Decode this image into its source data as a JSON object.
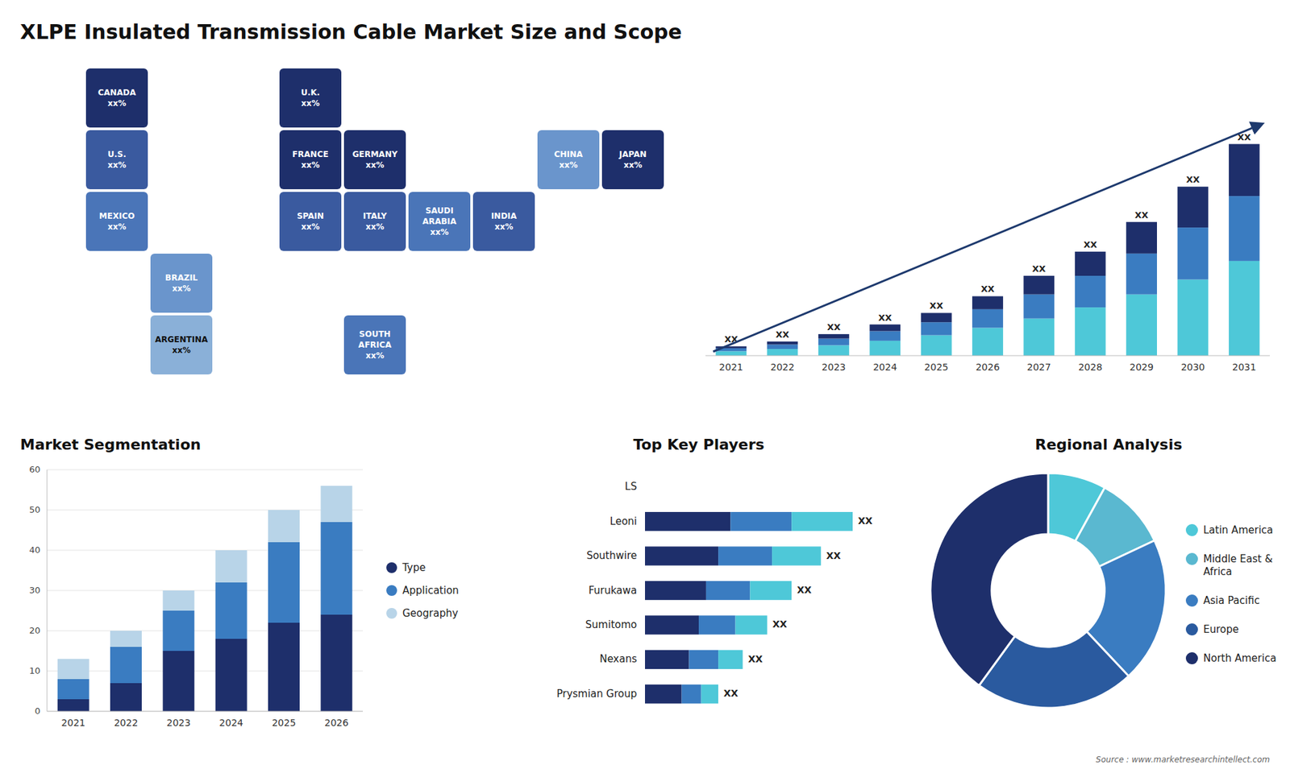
{
  "title": "XLPE Insulated Transmission Cable Market Size and Scope",
  "annotations": [
    "Source : www.marketresearchintellect.com"
  ],
  "chart_data": [
    {
      "type": "map",
      "categories": [
        "CANADA",
        "U.S.",
        "MEXICO",
        "BRAZIL",
        "ARGENTINA",
        "U.K.",
        "FRANCE",
        "SPAIN",
        "GERMANY",
        "ITALY",
        "SAUDI\nARABIA",
        "SOUTH\nAFRICA",
        "CHINA",
        "INDIA",
        "JAPAN"
      ],
      "annotations": [
        "xx%",
        "xx%",
        "xx%",
        "xx%",
        "xx%",
        "xx%",
        "xx%",
        "xx%",
        "xx%",
        "xx%",
        "xx%",
        "xx%",
        "xx%",
        "xx%",
        "xx%"
      ],
      "colors": [
        "#1e2f6b",
        "#3a5a9f",
        "#4a75b8",
        "#6a95cc",
        "#8ab0d8",
        "#1e2f6b",
        "#1e2f6b",
        "#3a5a9f",
        "#1e2f6b",
        "#3a5a9f",
        "#4a75b8",
        "#4a75b8",
        "#6a95cc",
        "#3a5a9f",
        "#1e2f6b"
      ]
    },
    {
      "type": "bar",
      "stacked": true,
      "categories": [
        "2021",
        "2022",
        "2023",
        "2024",
        "2025",
        "2026",
        "2027",
        "2028",
        "2029",
        "2030",
        "2031"
      ],
      "series": [
        {
          "color": "#4ec8d8",
          "values": [
            1.2,
            1.8,
            2.8,
            4.0,
            5.5,
            7.5,
            10.0,
            13.0,
            16.5,
            20.5,
            25.5
          ]
        },
        {
          "color": "#3a7cc1",
          "values": [
            0.8,
            1.2,
            1.8,
            2.6,
            3.5,
            5.0,
            6.5,
            8.5,
            11.0,
            14.0,
            17.5
          ]
        },
        {
          "color": "#1e2f6b",
          "values": [
            0.5,
            0.8,
            1.2,
            1.8,
            2.5,
            3.5,
            5.0,
            6.5,
            8.5,
            11.0,
            14.0
          ],
          "value_labels": [
            "XX",
            "XX",
            "XX",
            "XX",
            "XX",
            "XX",
            "XX",
            "XX",
            "XX",
            "XX",
            "XX"
          ]
        }
      ],
      "ylim": [
        0,
        74.1
      ],
      "tick_labels": "x"
    },
    {
      "type": "bar",
      "stacked": true,
      "title": "Market Segmentation",
      "categories": [
        "2021",
        "2022",
        "2023",
        "2024",
        "2025",
        "2026"
      ],
      "series": [
        {
          "name": "Type",
          "color": "#1e2f6b",
          "values": [
            3,
            7,
            15,
            18,
            22,
            24
          ]
        },
        {
          "name": "Application",
          "color": "#3a7cc1",
          "values": [
            5,
            9,
            10,
            14,
            20,
            23
          ]
        },
        {
          "name": "Geography",
          "color": "#b8d4e8",
          "values": [
            5,
            4,
            5,
            8,
            8,
            9
          ]
        }
      ],
      "ylim": [
        0,
        60
      ],
      "yticks": [
        0,
        10,
        20,
        30,
        40,
        50,
        60
      ],
      "grid": true,
      "legend": "right"
    },
    {
      "type": "bar",
      "orientation": "horizontal",
      "stacked": true,
      "title": "Top Key Players",
      "categories": [
        "LS",
        "Leoni",
        "Southwire",
        "Furukawa",
        "Sumitomo",
        "Nexans",
        "Prysmian Group"
      ],
      "series": [
        {
          "color": "#1e2f6b",
          "values": [
            null,
            3.5,
            3.0,
            2.5,
            2.2,
            1.8,
            1.5
          ]
        },
        {
          "color": "#3a7cc1",
          "values": [
            null,
            2.5,
            2.2,
            1.8,
            1.5,
            1.2,
            0.8
          ]
        },
        {
          "color": "#4ec8d8",
          "values": [
            null,
            2.5,
            2.0,
            1.7,
            1.3,
            1.0,
            0.7
          ],
          "value_labels": [
            null,
            "XX",
            "XX",
            "XX",
            "XX",
            "XX",
            "XX"
          ]
        }
      ],
      "xlim": [
        0,
        11
      ],
      "tick_labels": "y"
    },
    {
      "type": "pie",
      "title": "Regional Analysis",
      "categories": [
        "Latin America",
        "Middle East &\nAfrica",
        "Asia Pacific",
        "Europe",
        "North America"
      ],
      "values": [
        8,
        10,
        20,
        22,
        40
      ],
      "colors": [
        "#4ec8d8",
        "#5ab8d0",
        "#3a7cc1",
        "#2a5a9f",
        "#1e2f6b"
      ],
      "legend": "right"
    }
  ]
}
